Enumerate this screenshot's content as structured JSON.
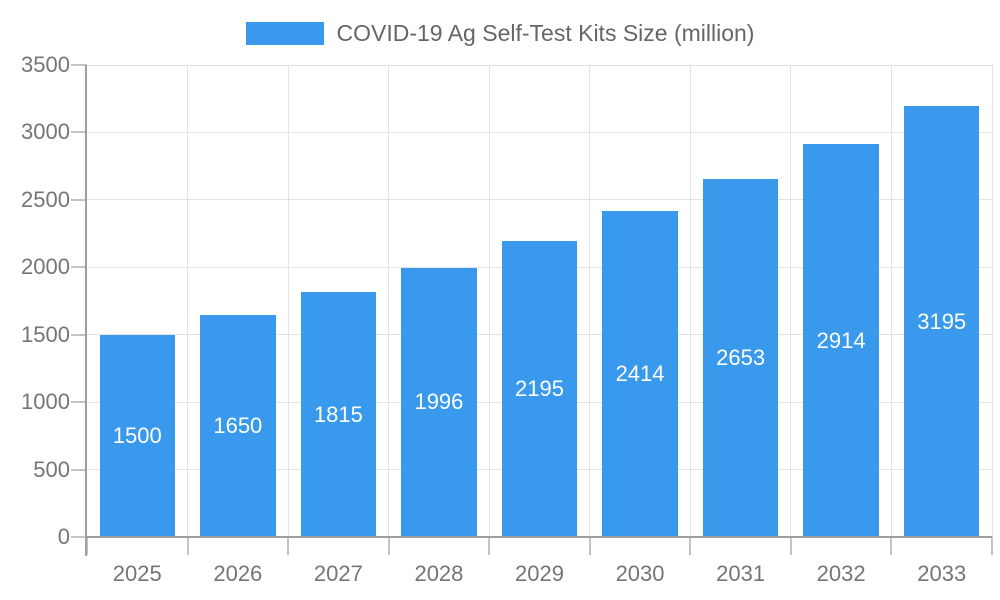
{
  "chart_data": {
    "type": "bar",
    "title": "COVID-19 Ag Self-Test Kits Size (million)",
    "legend_position": "top",
    "categories": [
      "2025",
      "2026",
      "2027",
      "2028",
      "2029",
      "2030",
      "2031",
      "2032",
      "2033"
    ],
    "values": [
      1500,
      1650,
      1815,
      1996,
      2195,
      2414,
      2653,
      2914,
      3195
    ],
    "value_labels": [
      "1500",
      "1650",
      "1815",
      "1996",
      "2195",
      "2414",
      "2653",
      "2914",
      "3195"
    ],
    "y_ticks": [
      0,
      500,
      1000,
      1500,
      2000,
      2500,
      3000,
      3500
    ],
    "ylim": [
      0,
      3500
    ],
    "xlabel": "",
    "ylabel": "",
    "grid": true,
    "colors": {
      "bar": "#3999ED",
      "value_label": "#ffffff",
      "axis_text": "#757575",
      "title_text": "#666666",
      "gridline": "#e3e3e3",
      "axis_line": "#9e9e9e",
      "tick_mark": "#c4c4c4",
      "background": "#ffffff"
    }
  }
}
